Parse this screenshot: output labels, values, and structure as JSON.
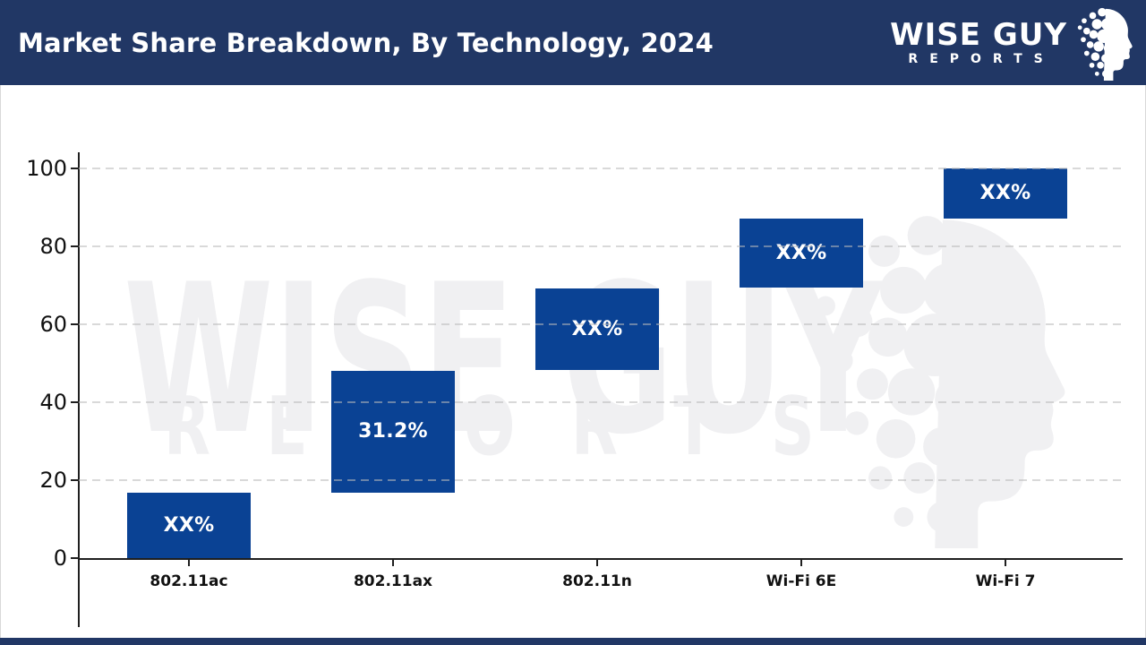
{
  "header": {
    "title": "Market Share Breakdown, By Technology, 2024",
    "logo": {
      "line1": "WISE GUY",
      "line2": "REPORTS"
    },
    "bg_color": "#213765"
  },
  "watermark": {
    "line1": "WISE GUY",
    "line2": "R E P O R T S"
  },
  "chart_data": {
    "type": "bar",
    "subtype": "waterfall",
    "title": "Market Share Breakdown, By Technology, 2024",
    "categories": [
      "802.11ac",
      "802.11ax",
      "802.11n",
      "Wi-Fi 6E",
      "Wi-Fi 7"
    ],
    "bar_ranges": [
      [
        0,
        16.8
      ],
      [
        16.8,
        48.0
      ],
      [
        48.2,
        69.2
      ],
      [
        69.3,
        87.0
      ],
      [
        87.0,
        100.0
      ]
    ],
    "bar_labels": [
      "XX%",
      "31.2%",
      "XX%",
      "XX%",
      "XX%"
    ],
    "y_ticks": [
      0,
      20,
      40,
      60,
      80,
      100
    ],
    "ylim": [
      0,
      100
    ],
    "xlabel": "",
    "ylabel": "",
    "legend": "none",
    "grid": "horizontal-dashed",
    "bar_color": "#0a4294",
    "label_color": "#ffffff"
  }
}
